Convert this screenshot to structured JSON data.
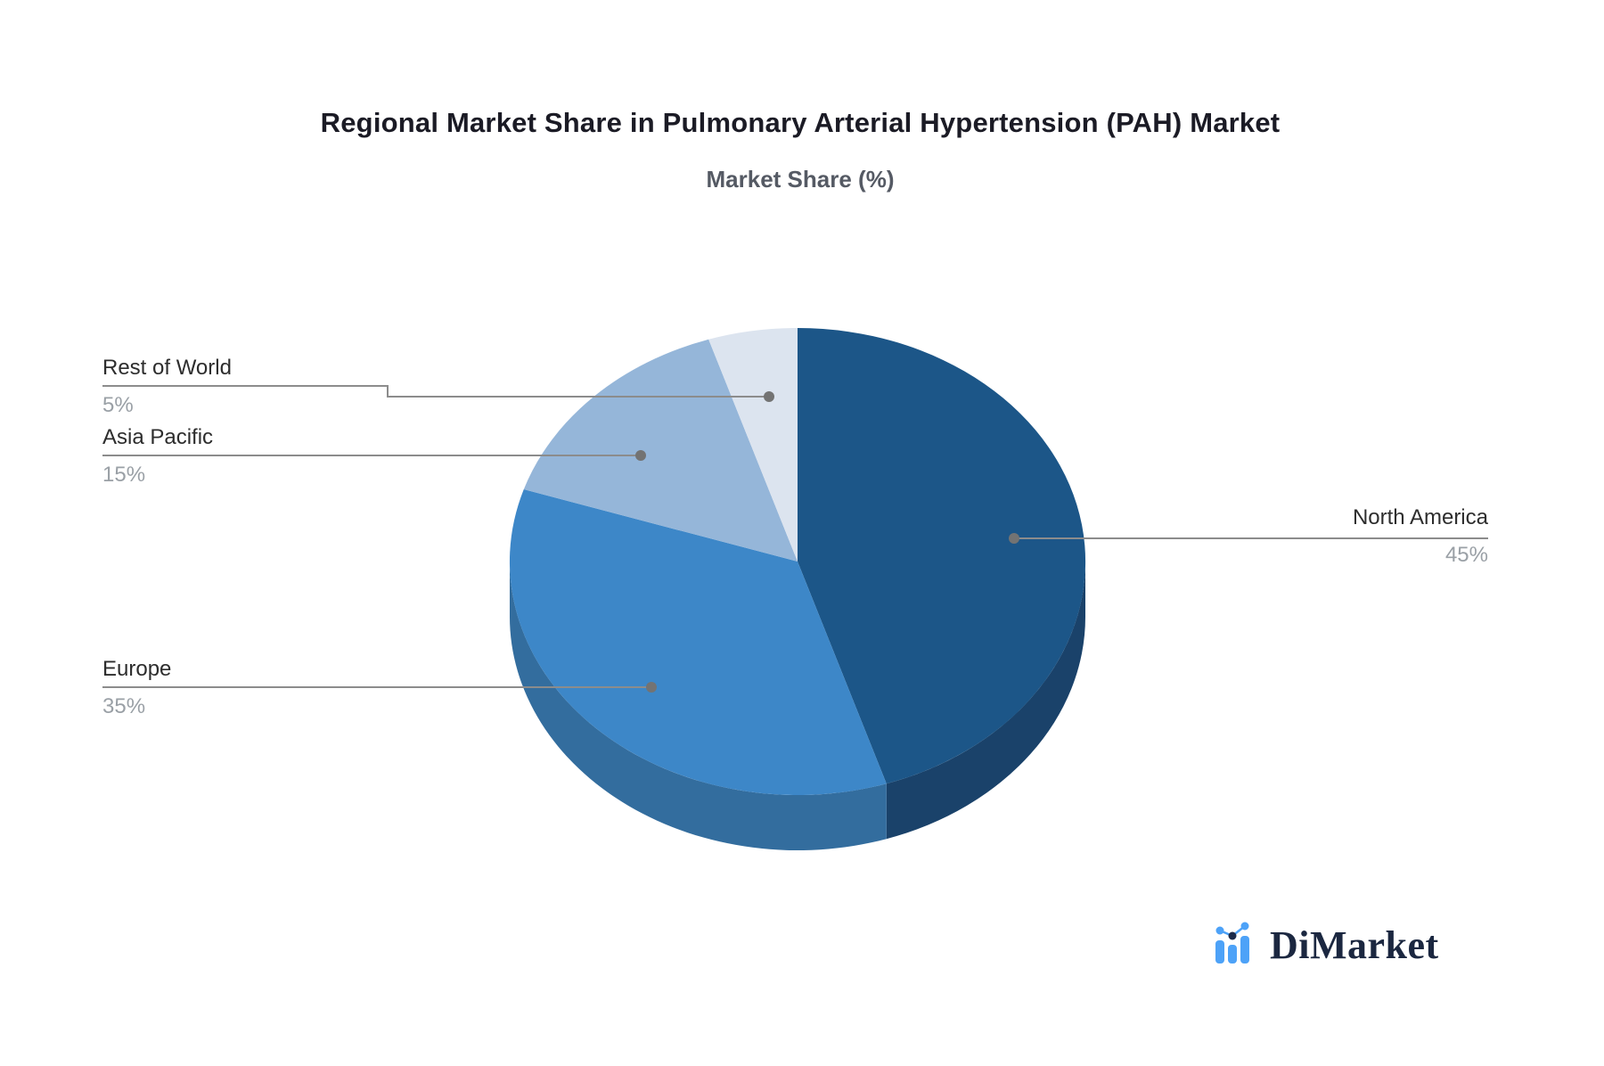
{
  "header": {
    "title": "Regional Market Share in Pulmonary Arterial Hypertension (PAH) Market",
    "subtitle": "Market Share (%)"
  },
  "chart_data": {
    "type": "pie",
    "style": "3d",
    "title": "Regional Market Share in Pulmonary Arterial Hypertension (PAH) Market",
    "subtitle": "Market Share (%)",
    "unit": "%",
    "start_angle": "12-oclock",
    "direction": "clockwise",
    "legend_position": "none",
    "slices": [
      {
        "label": "North America",
        "value": 45,
        "display": "45%",
        "color": "#1c5688",
        "side_color": "#1a426a",
        "label_side": "right"
      },
      {
        "label": "Europe",
        "value": 35,
        "display": "35%",
        "color": "#3d87c8",
        "side_color": "#336d9e",
        "label_side": "left"
      },
      {
        "label": "Asia Pacific",
        "value": 15,
        "display": "15%",
        "color": "#95b6d9",
        "label_side": "left"
      },
      {
        "label": "Rest of World",
        "value": 5,
        "display": "5%",
        "color": "#dce4ef",
        "label_side": "left"
      }
    ]
  },
  "brand": {
    "name": "DiMarket",
    "icon": "bar-line-chart-icon"
  },
  "colors": {
    "title": "#1b1b25",
    "subtitle": "#555a64",
    "label_text": "#2d2d2d",
    "pct_text": "#9aa0a6",
    "leader_line": "#8c8c8c",
    "leader_dot": "#737373",
    "logo_text": "#1b2740",
    "logo_accent": "#4da2f8",
    "logo_dark": "#1d2b4a"
  }
}
